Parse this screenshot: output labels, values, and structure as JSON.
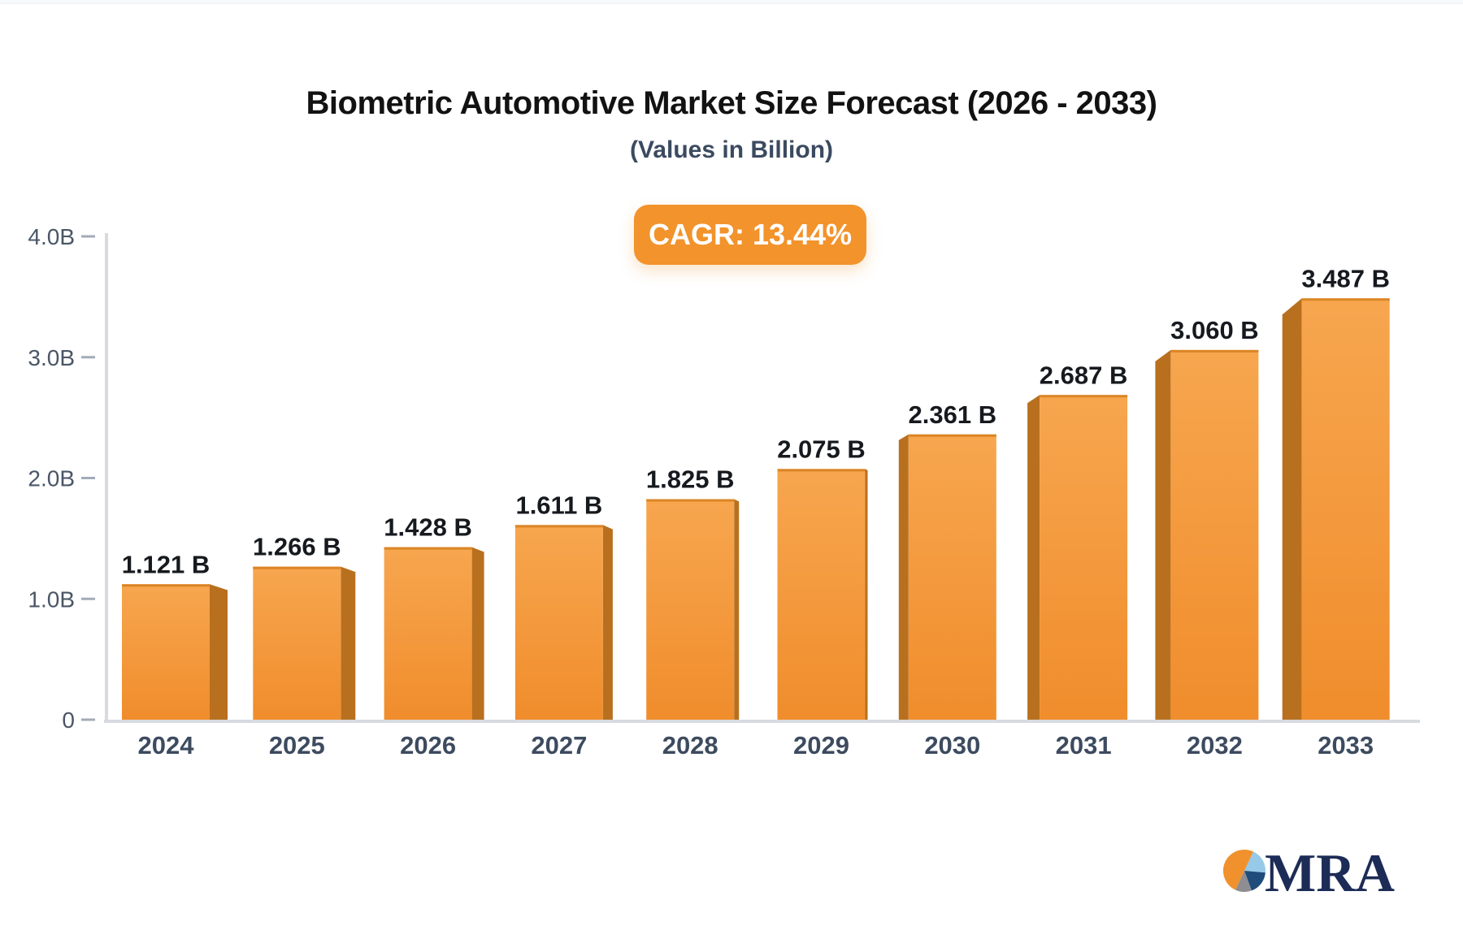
{
  "header": {
    "title": "Biometric Automotive Market Size Forecast (2026 - 2033)",
    "subtitle": "(Values in Billion)"
  },
  "badge": {
    "label": "CAGR: 13.44%",
    "bg": "#F2932C",
    "text_color": "#FFFFFF"
  },
  "chart_data": {
    "type": "bar",
    "title": "Biometric Automotive Market Size Forecast (2026 - 2033)",
    "subtitle": "(Values in Billion)",
    "categories": [
      "2024",
      "2025",
      "2026",
      "2027",
      "2028",
      "2029",
      "2030",
      "2031",
      "2032",
      "2033"
    ],
    "values": [
      1.121,
      1.266,
      1.428,
      1.611,
      1.825,
      2.075,
      2.361,
      2.687,
      3.06,
      3.487
    ],
    "value_labels": [
      "1.121 B",
      "1.266 B",
      "1.428 B",
      "1.611 B",
      "1.825 B",
      "2.075 B",
      "2.361 B",
      "2.687 B",
      "3.060 B",
      "3.487 B"
    ],
    "xlabel": "",
    "ylabel": "",
    "ylim": [
      0,
      4
    ],
    "grid": false,
    "legend": false,
    "yticks": [
      {
        "value": 0,
        "label": "0"
      },
      {
        "value": 1,
        "label": "1.0B"
      },
      {
        "value": 2,
        "label": "2.0B"
      },
      {
        "value": 3,
        "label": "3.0B"
      },
      {
        "value": 4,
        "label": "4.0B"
      }
    ],
    "style": "3d-perspective-bars",
    "colors": {
      "bar_face_top": "#F7A64F",
      "bar_face_bottom": "#F08D2C",
      "bar_side": "#B8701F",
      "bar_top_edge": "#DB8526",
      "value_text": "#16191E",
      "year_text": "#3D4B5F",
      "ytick_text": "#4A5667",
      "tick_stroke": "#A2ABB8",
      "axis_line": "#D7DADF"
    }
  },
  "logo": {
    "text": "MRA",
    "colors": {
      "pie_orange": "#F0912D",
      "pie_blue": "#97CAE8",
      "pie_navy": "#1F4C7A",
      "pie_gray": "#8D8D92",
      "text_navy": "#1C2C56"
    }
  }
}
